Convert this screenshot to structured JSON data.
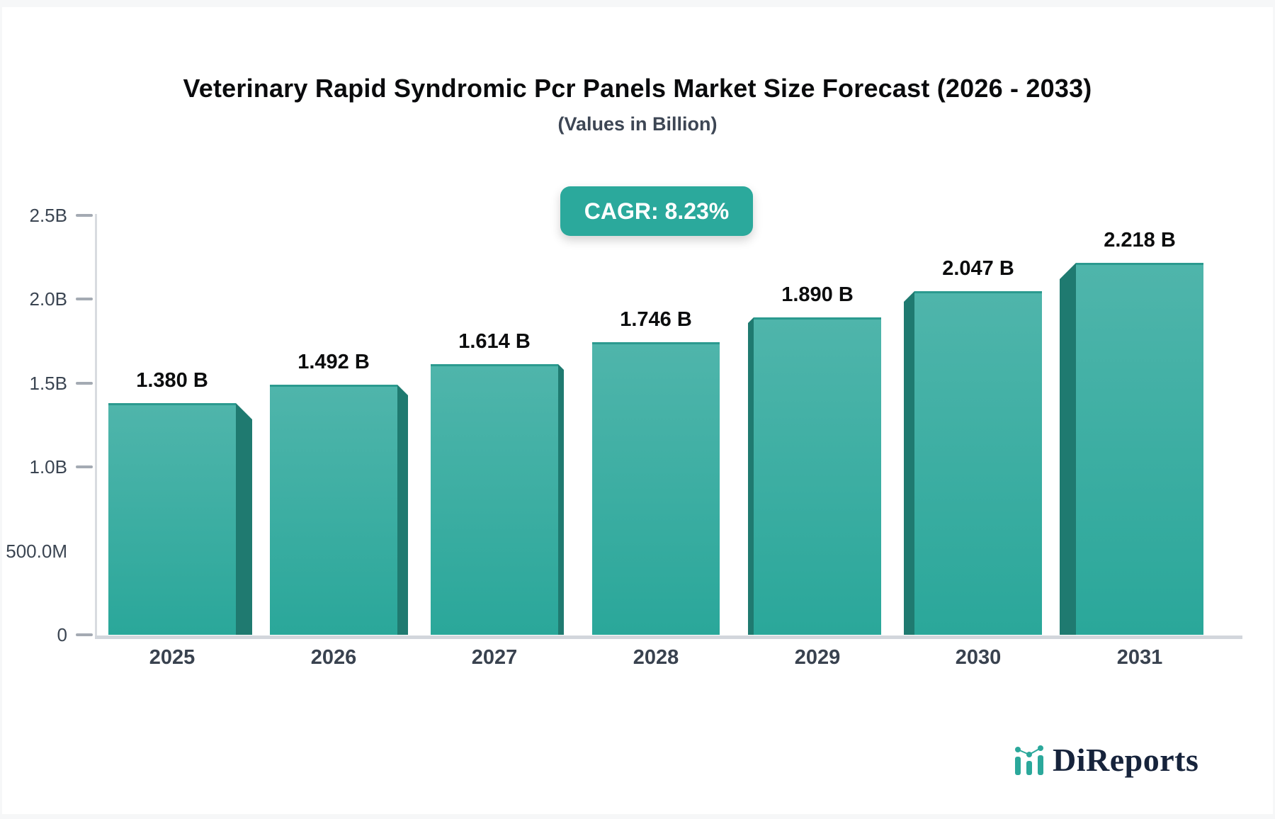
{
  "header": {
    "title": "Veterinary Rapid Syndromic Pcr Panels Market Size Forecast (2026 - 2033)",
    "subtitle": "(Values in Billion)",
    "cagr_badge": "CAGR: 8.23%"
  },
  "chart_data": {
    "type": "bar",
    "title": "Veterinary Rapid Syndromic Pcr Panels Market Size Forecast (2026 - 2033)",
    "subtitle": "(Values in Billion)",
    "unit": "Billion USD",
    "cagr_percent": 8.23,
    "categories": [
      "2025",
      "2026",
      "2027",
      "2028",
      "2029",
      "2030",
      "2031"
    ],
    "values": [
      1.38,
      1.492,
      1.614,
      1.746,
      1.89,
      2.047,
      2.218
    ],
    "value_labels": [
      "1.380 B",
      "1.492 B",
      "1.614 B",
      "1.746 B",
      "1.890 B",
      "2.047 B",
      "2.218 B"
    ],
    "ylim": [
      0,
      2.5
    ],
    "y_ticks": [
      {
        "value": 2.5,
        "label": "2.5B",
        "dash": true
      },
      {
        "value": 2.0,
        "label": "2.0B",
        "dash": true
      },
      {
        "value": 1.5,
        "label": "1.5B",
        "dash": true
      },
      {
        "value": 1.0,
        "label": "1.0B",
        "dash": true
      },
      {
        "value": 0.5,
        "label": "500.0M",
        "dash": false
      },
      {
        "value": 0,
        "label": "0",
        "dash": true
      }
    ],
    "grid": false,
    "legend": false,
    "bar_style": "3d-perspective-center-vanishing"
  },
  "colors": {
    "bar_gradient_top": "#4FB5AB",
    "bar_gradient_bottom": "#2AA79A",
    "bar_side_face": "#1F7A70",
    "bar_top_edge": "#2B9A8F",
    "badge_bg": "#2BA99C",
    "badge_text": "#FFFFFF",
    "axis_line": "#D3D6DC",
    "tick_text": "#3B4552",
    "value_label_text": "#0C0D0E",
    "logo_navy": "#16233B",
    "logo_teal": "#2BA89B"
  },
  "footer": {
    "brand": "DiReports"
  }
}
